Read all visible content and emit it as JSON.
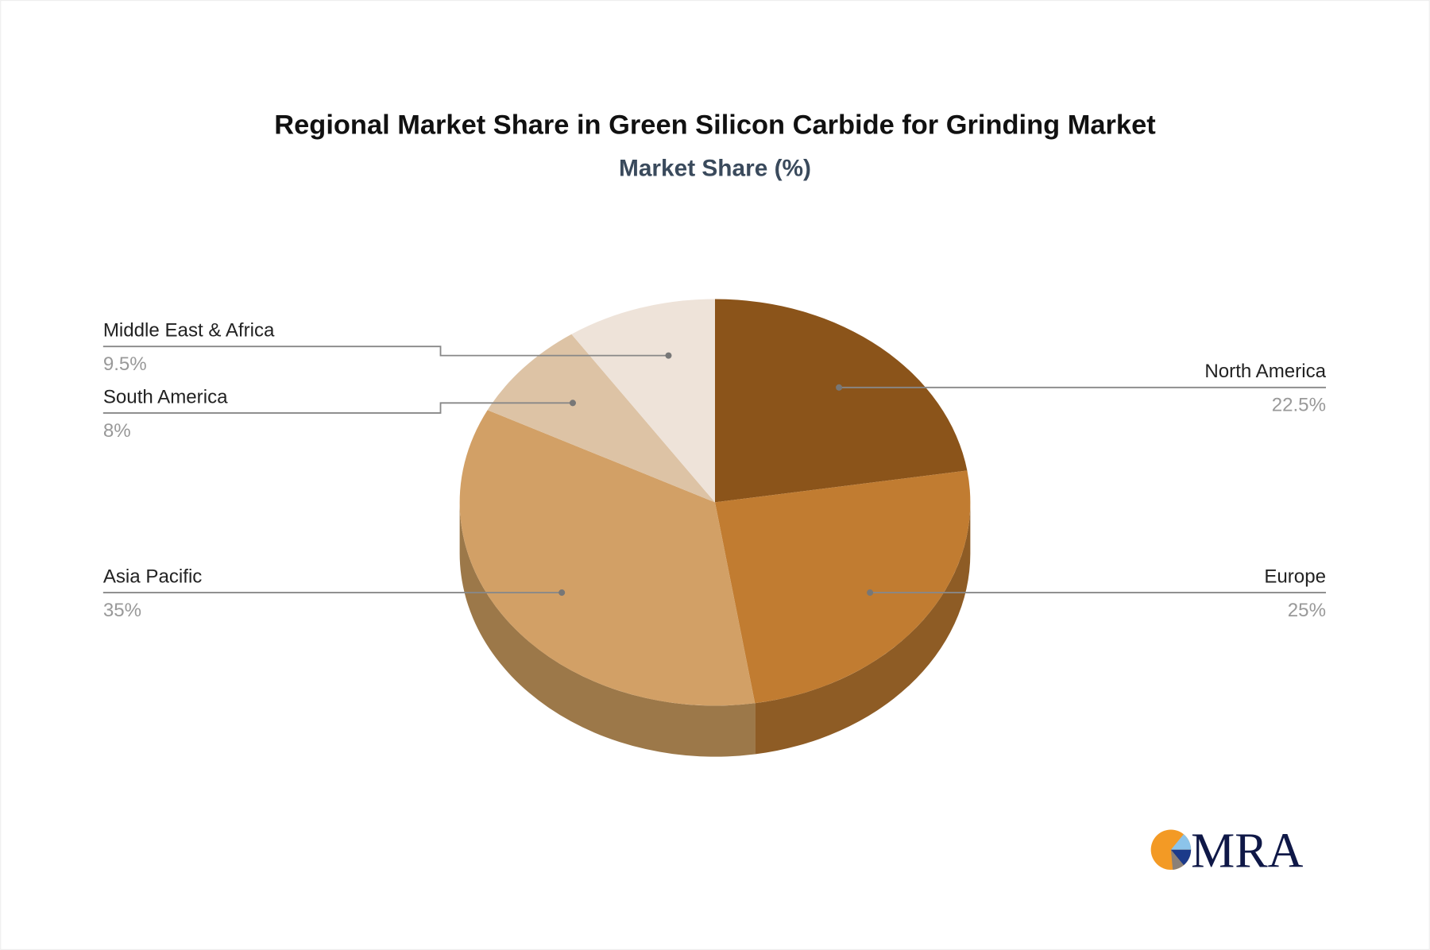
{
  "chart_data": {
    "type": "pie",
    "title": "Regional Market Share in Green Silicon Carbide for Grinding Market",
    "subtitle": "Market Share (%)",
    "style": "3d",
    "slices": [
      {
        "label": "North America",
        "value": 22.5,
        "value_label": "22.5%",
        "color": "#8B541A",
        "side_color": "#7A4A17"
      },
      {
        "label": "Europe",
        "value": 25,
        "value_label": "25%",
        "color": "#C17C31",
        "side_color": "#8E5C25"
      },
      {
        "label": "Asia Pacific",
        "value": 35,
        "value_label": "35%",
        "color": "#D2A066",
        "side_color": "#9C7849"
      },
      {
        "label": "South America",
        "value": 8,
        "value_label": "8%",
        "color": "#DDC3A5",
        "side_color": "#A89078"
      },
      {
        "label": "Middle East & Africa",
        "value": 9.5,
        "value_label": "9.5%",
        "color": "#EEE3D9",
        "side_color": "#B5A99E"
      }
    ]
  },
  "logo": {
    "text": "MRA",
    "colors": {
      "orange": "#F39A25",
      "navy": "#0F1847",
      "light_blue": "#8CC4EA",
      "blue": "#1B3A8A",
      "gray": "#8A8078"
    }
  }
}
